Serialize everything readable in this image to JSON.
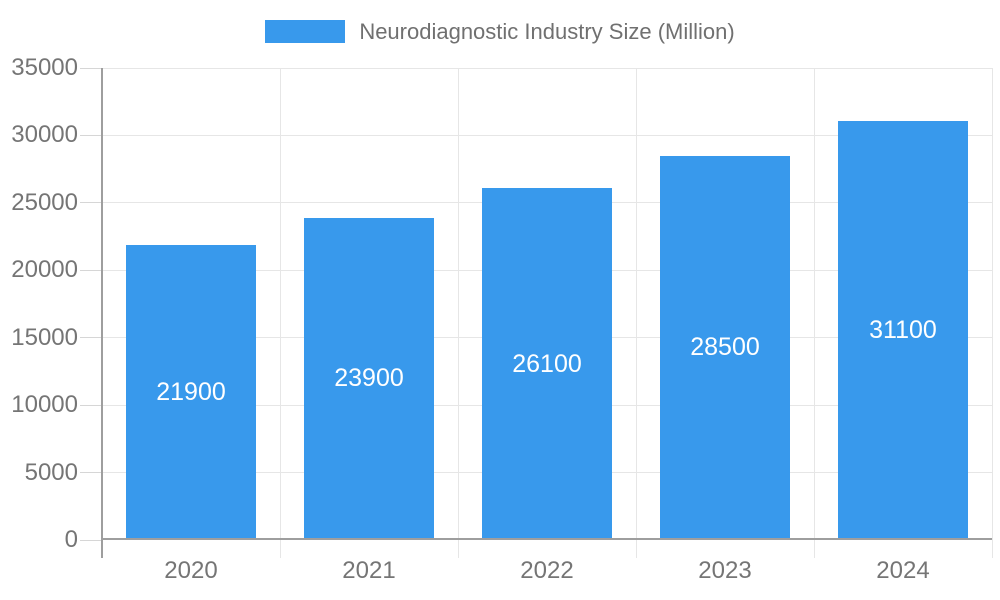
{
  "legend": {
    "label": "Neurodiagnostic Industry Size (Million)"
  },
  "colors": {
    "bar": "#3899EC",
    "axis_line": "#9e9e9e",
    "gridline": "#e6e6e6",
    "tick": "#d6d6d6",
    "axis_text": "#757575",
    "legend_text": "#707070",
    "data_label": "#ffffff",
    "background": "#ffffff"
  },
  "chart_data": {
    "type": "bar",
    "title": "Neurodiagnostic Industry Size (Million)",
    "series_name": "Neurodiagnostic Industry Size (Million)",
    "categories": [
      "2020",
      "2021",
      "2022",
      "2023",
      "2024"
    ],
    "values": [
      21900,
      23900,
      26100,
      28500,
      31100
    ],
    "data_labels": [
      "21900",
      "23900",
      "26100",
      "28500",
      "31100"
    ],
    "xlabel": "",
    "ylabel": "",
    "ylim": [
      0,
      35000
    ],
    "ytick_step": 5000,
    "yticks": [
      0,
      5000,
      10000,
      15000,
      20000,
      25000,
      30000,
      35000
    ],
    "grid": true,
    "legend_position": "top",
    "data_label_style": "inside-center-white"
  }
}
